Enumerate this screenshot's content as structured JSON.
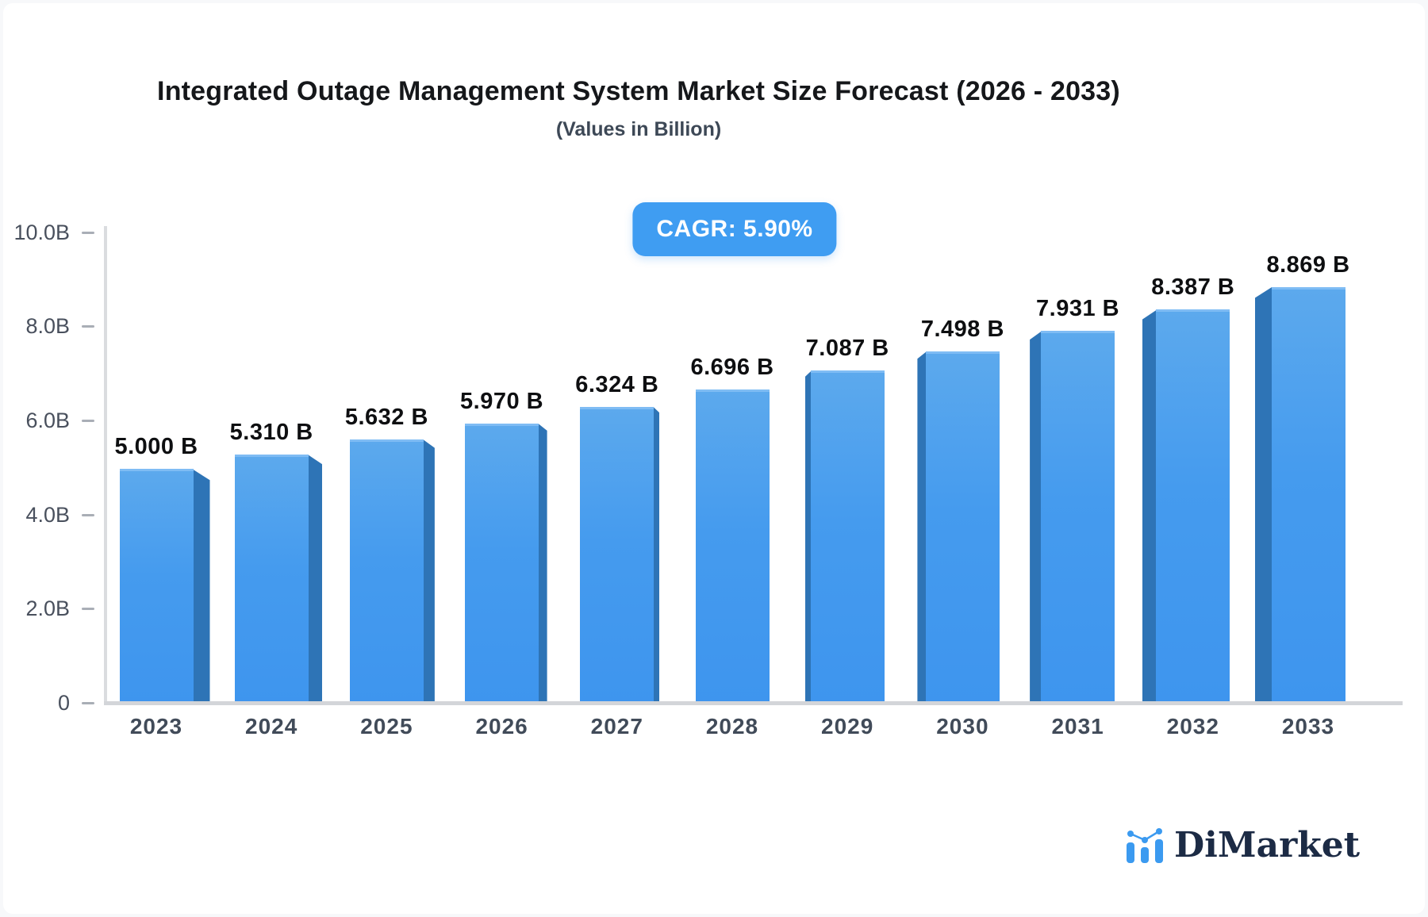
{
  "header": {
    "title": "Integrated Outage Management System Market Size Forecast (2026 - 2033)",
    "subtitle": "(Values in Billion)",
    "cagr_badge": "CAGR: 5.90%"
  },
  "chart_data": {
    "type": "bar",
    "title": "Integrated Outage Management System Market Size Forecast (2026 - 2033)",
    "subtitle": "(Values in Billion)",
    "unit": "Billion",
    "categories": [
      "2023",
      "2024",
      "2025",
      "2026",
      "2027",
      "2028",
      "2029",
      "2030",
      "2031",
      "2032",
      "2033"
    ],
    "values": [
      5.0,
      5.31,
      5.632,
      5.97,
      6.324,
      6.696,
      7.087,
      7.498,
      7.931,
      8.387,
      8.869
    ],
    "value_labels": [
      "5.000 B",
      "5.310 B",
      "5.632 B",
      "5.970 B",
      "6.324 B",
      "6.696 B",
      "7.087 B",
      "7.498 B",
      "7.931 B",
      "8.387 B",
      "8.869 B"
    ],
    "cagr": "5.90%",
    "xlabel": "",
    "ylabel": "",
    "ylim": [
      0,
      10
    ],
    "yticks": [
      {
        "value": 0,
        "label": "0"
      },
      {
        "value": 2,
        "label": "2.0B"
      },
      {
        "value": 4,
        "label": "4.0B"
      },
      {
        "value": 6,
        "label": "6.0B"
      },
      {
        "value": 8,
        "label": "8.0B"
      },
      {
        "value": 10,
        "label": "10.0B"
      }
    ],
    "grid": false,
    "legend": false,
    "colors": {
      "bar_front": "#3f97ef",
      "bar_front_light": "#5cA9ed",
      "bar_top_highlight": "#7fbcf4",
      "bar_side": "#2e74b6",
      "axis": "#d3d5d9",
      "badge": "#3f9df2",
      "value_label": "#0e0f11",
      "tick_label": "#49505d"
    }
  },
  "branding": {
    "logo_text": "DiMarket",
    "logo_icon": "bar-chart-logo-icon",
    "logo_color": "#3b9af0",
    "logo_text_color": "#1c2b45"
  }
}
